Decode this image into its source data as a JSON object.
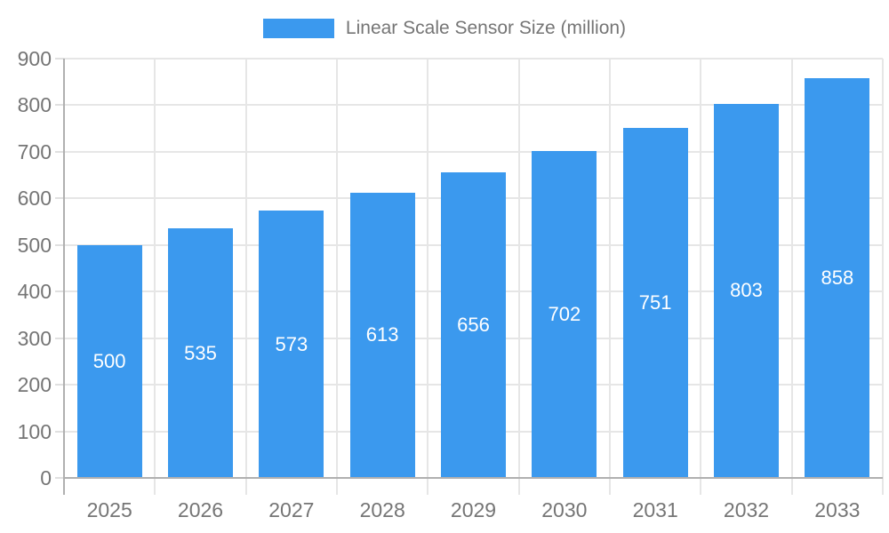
{
  "legend": {
    "label": "Linear Scale Sensor Size (million)"
  },
  "chart_data": {
    "type": "bar",
    "title": "Linear Scale Sensor Size (million)",
    "categories": [
      "2025",
      "2026",
      "2027",
      "2028",
      "2029",
      "2030",
      "2031",
      "2032",
      "2033"
    ],
    "values": [
      500,
      535,
      573,
      613,
      656,
      702,
      751,
      803,
      858
    ],
    "xlabel": "",
    "ylabel": "",
    "ylim": [
      0,
      900
    ],
    "y_ticks": [
      0,
      100,
      200,
      300,
      400,
      500,
      600,
      700,
      800,
      900
    ],
    "grid": true,
    "legend_position": "top-center",
    "bar_labels_inside": true,
    "colors": {
      "bar": "#3b99ee",
      "bar_value_label": "#ffffff",
      "axis_text": "#757575",
      "gridline": "#e6e6e6",
      "axis_line": "#b0b0b0",
      "tick": "#e0e0e0",
      "background": "#ffffff"
    }
  }
}
